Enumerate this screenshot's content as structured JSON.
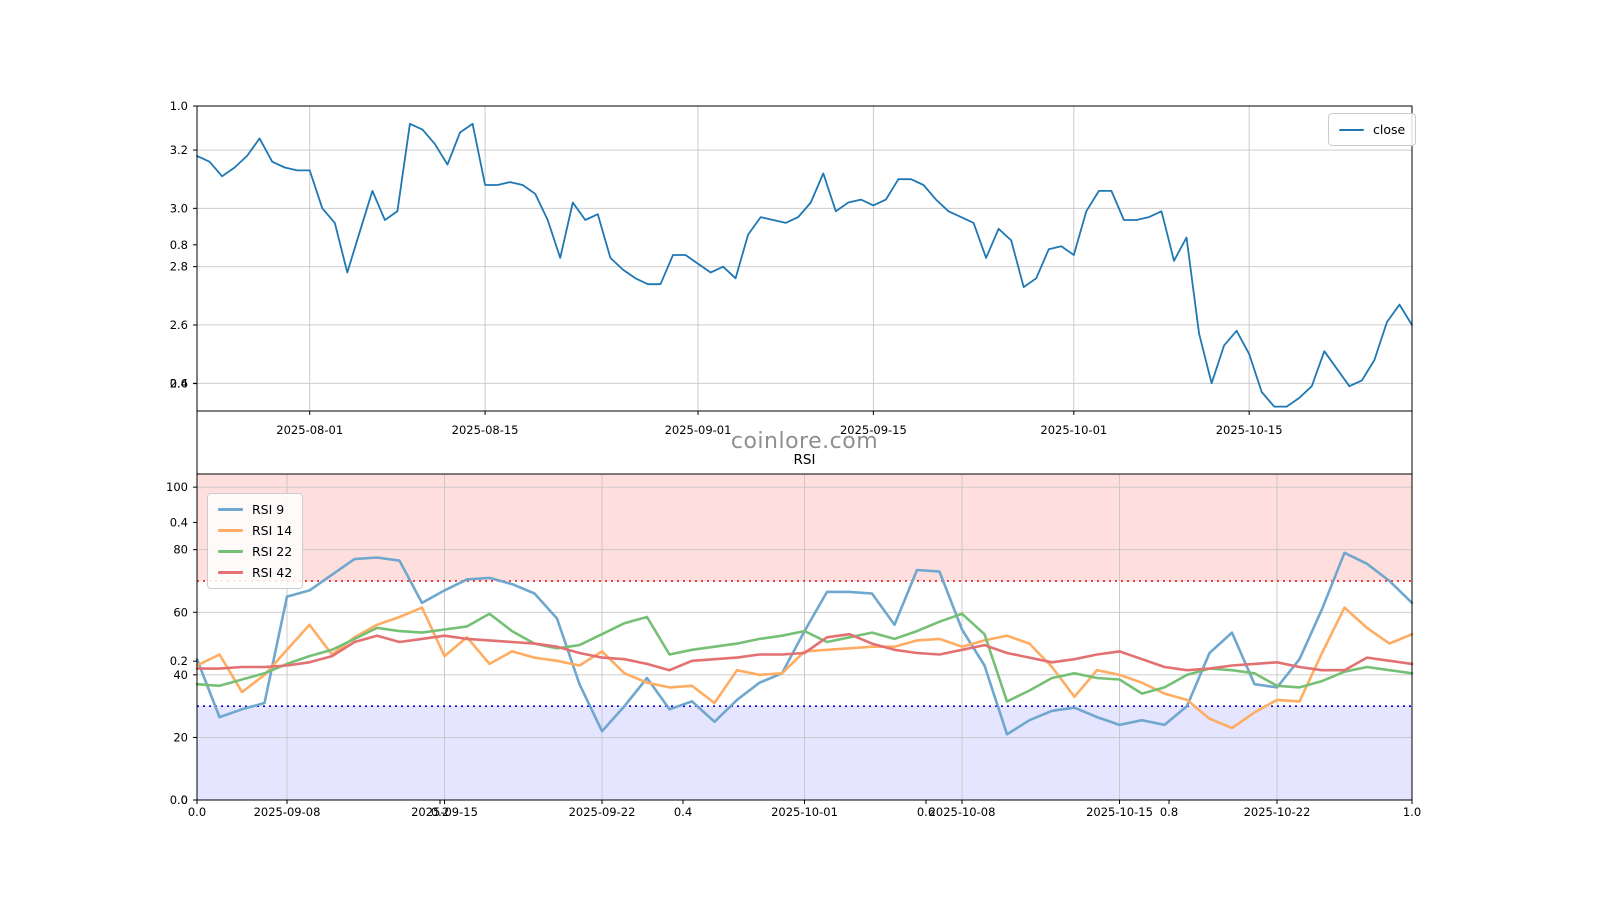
{
  "watermark": "coinlore.com",
  "colors": {
    "close_line": "#1f77b4",
    "rsi9": "#6fa7ce",
    "rsi14": "#ffad63",
    "rsi22": "#76c076",
    "rsi42": "#e37172",
    "overbought_band": "rgba(255,0,0,0.13)",
    "oversold_band": "rgba(40,40,255,0.12)",
    "overbought_line": "#ff0000",
    "oversold_line": "#0000ff",
    "grid": "#c6c6c6",
    "watermark_text": "#8f8f8f"
  },
  "overlay_axis": {
    "y_tick_labels": [
      "1.0",
      "0.8",
      "0.6",
      "0.4",
      "0.2",
      "0.0"
    ],
    "x_tick_labels": [
      "0.0",
      "0.2",
      "0.4",
      "0.6",
      "0.8",
      "1.0"
    ]
  },
  "chart_data": [
    {
      "type": "line",
      "name": "price",
      "title": "",
      "xlabel": "",
      "ylabel": "",
      "grid": true,
      "x_start": "2025-07-23",
      "x_freq_days": 1,
      "x_tick_dates": [
        "2025-08-01",
        "2025-08-15",
        "2025-09-01",
        "2025-09-15",
        "2025-10-01",
        "2025-10-15"
      ],
      "x_tick_labels": [
        "2025-08-01",
        "2025-08-15",
        "2025-09-01",
        "2025-09-15",
        "2025-10-01",
        "2025-10-15"
      ],
      "y_tick_values": [
        3.2,
        3.0,
        2.8,
        2.6,
        2.4
      ],
      "y_tick_labels": [
        "3.2",
        "3.0",
        "2.8",
        "2.6",
        "2.4"
      ],
      "ylim": [
        2.305,
        3.351
      ],
      "legend": {
        "position": "upper right",
        "entries": [
          {
            "label": "close",
            "color": "#1f77b4"
          }
        ]
      },
      "series": [
        {
          "name": "close",
          "color": "#1f77b4",
          "values": [
            3.18,
            3.16,
            3.11,
            3.14,
            3.18,
            3.24,
            3.16,
            3.14,
            3.13,
            3.13,
            3.0,
            2.95,
            2.78,
            2.92,
            3.06,
            2.96,
            2.99,
            3.29,
            3.27,
            3.22,
            3.15,
            3.26,
            3.29,
            3.08,
            3.08,
            3.09,
            3.08,
            3.05,
            2.96,
            2.83,
            3.02,
            2.96,
            2.98,
            2.83,
            2.79,
            2.76,
            2.74,
            2.74,
            2.84,
            2.84,
            2.81,
            2.78,
            2.8,
            2.76,
            2.91,
            2.97,
            2.96,
            2.95,
            2.97,
            3.02,
            3.12,
            2.99,
            3.02,
            3.03,
            3.01,
            3.03,
            3.1,
            3.1,
            3.08,
            3.03,
            2.99,
            2.97,
            2.95,
            2.83,
            2.93,
            2.89,
            2.73,
            2.76,
            2.86,
            2.87,
            2.84,
            2.99,
            3.06,
            3.06,
            2.96,
            2.96,
            2.97,
            2.99,
            2.82,
            2.9,
            2.57,
            2.4,
            2.53,
            2.58,
            2.5,
            2.37,
            2.32,
            2.32,
            2.35,
            2.39,
            2.51,
            2.45,
            2.39,
            2.41,
            2.48,
            2.61,
            2.67,
            2.6
          ]
        }
      ]
    },
    {
      "type": "line",
      "name": "rsi",
      "title": "RSI",
      "xlabel": "",
      "ylabel": "",
      "grid": true,
      "x_start": "2025-09-04",
      "x_freq_days": 1,
      "x_tick_dates": [
        "2025-09-08",
        "2025-09-15",
        "2025-09-22",
        "2025-10-01",
        "2025-10-08",
        "2025-10-15",
        "2025-10-22"
      ],
      "x_tick_labels": [
        "2025-09-08",
        "2025-09-15",
        "2025-09-22",
        "2025-10-01",
        "2025-10-08",
        "2025-10-15",
        "2025-10-22"
      ],
      "y_tick_values": [
        100,
        80,
        60,
        40,
        20,
        0
      ],
      "y_tick_labels": [
        "100",
        "80",
        "60",
        "40",
        "20",
        "0"
      ],
      "ylim": [
        0,
        104.2
      ],
      "hlines": [
        {
          "y": 70,
          "color": "#ff0000",
          "name": "overbought-threshold-line"
        },
        {
          "y": 30,
          "color": "#0000ff",
          "name": "oversold-threshold-line"
        }
      ],
      "bands": [
        {
          "from": 70,
          "to": 104.2,
          "color": "rgba(255,0,0,0.13)",
          "name": "overbought-band"
        },
        {
          "from": 0,
          "to": 30,
          "color": "rgba(40,40,255,0.12)",
          "name": "oversold-band"
        }
      ],
      "legend": {
        "position": "upper left",
        "entries": [
          {
            "label": "RSI 9",
            "color": "#6fa7ce"
          },
          {
            "label": "RSI 14",
            "color": "#ffad63"
          },
          {
            "label": "RSI 22",
            "color": "#76c076"
          },
          {
            "label": "RSI 42",
            "color": "#e37172"
          }
        ]
      },
      "series": [
        {
          "name": "RSI 9",
          "color": "#6fa7ce",
          "values": [
            45,
            26.5,
            29,
            31,
            65,
            67,
            72,
            77,
            77.5,
            76.5,
            63,
            67,
            70.5,
            71,
            69,
            66,
            58,
            37,
            22,
            30,
            39,
            29,
            31.5,
            25,
            32,
            37.5,
            40.5,
            54,
            66.5,
            66.5,
            66,
            56,
            73.5,
            73,
            54.5,
            43,
            21,
            25.5,
            28.5,
            29.5,
            26.5,
            24,
            25.5,
            24,
            30,
            47,
            53.5,
            37,
            36,
            45,
            61,
            79,
            75.5,
            70,
            63
          ]
        },
        {
          "name": "RSI 14",
          "color": "#ffad63",
          "values": [
            43,
            46.5,
            34.5,
            40,
            48,
            56,
            46.5,
            52,
            56,
            58.5,
            61.5,
            46,
            52,
            43.5,
            47.5,
            45.5,
            44.5,
            43,
            47.5,
            40.5,
            37.5,
            36,
            36.5,
            31,
            41.5,
            40,
            40.5,
            47.5,
            48,
            48.5,
            49,
            49,
            51,
            51.5,
            49,
            51,
            52.5,
            50,
            42.5,
            33,
            41.5,
            40,
            37.5,
            34,
            32,
            26,
            23,
            28,
            32,
            31.5,
            47,
            61.5,
            55,
            50,
            53
          ]
        },
        {
          "name": "RSI 22",
          "color": "#76c076",
          "values": [
            37,
            36.5,
            38.5,
            40.5,
            43.5,
            46,
            48,
            51.5,
            55,
            54,
            53.5,
            54.5,
            55.5,
            59.5,
            54,
            50,
            48.5,
            49.5,
            53,
            56.5,
            58.5,
            46.5,
            48,
            49,
            50,
            51.5,
            52.5,
            54,
            50.5,
            52,
            53.5,
            51.5,
            54,
            57,
            59.5,
            53,
            31.5,
            35,
            39,
            40.5,
            39,
            38.5,
            34,
            36,
            40,
            42,
            41.5,
            40.5,
            36.5,
            36,
            38,
            41,
            42.5,
            41.5,
            40.5
          ]
        },
        {
          "name": "RSI 42",
          "color": "#e37172",
          "values": [
            42,
            42,
            42.5,
            42.5,
            43,
            44,
            46,
            50.5,
            52.5,
            50.5,
            51.5,
            52.5,
            51.5,
            51,
            50.5,
            50,
            49,
            47,
            45.5,
            45,
            43.5,
            41.5,
            44.5,
            45,
            45.5,
            46.5,
            46.5,
            47,
            52,
            53,
            50,
            48,
            47,
            46.5,
            48,
            49.5,
            47,
            45.5,
            44,
            45,
            46.5,
            47.5,
            45,
            42.5,
            41.5,
            42,
            43,
            43.5,
            44,
            42.5,
            41.5,
            41.5,
            45.5,
            44.5,
            43.5
          ]
        }
      ]
    }
  ]
}
